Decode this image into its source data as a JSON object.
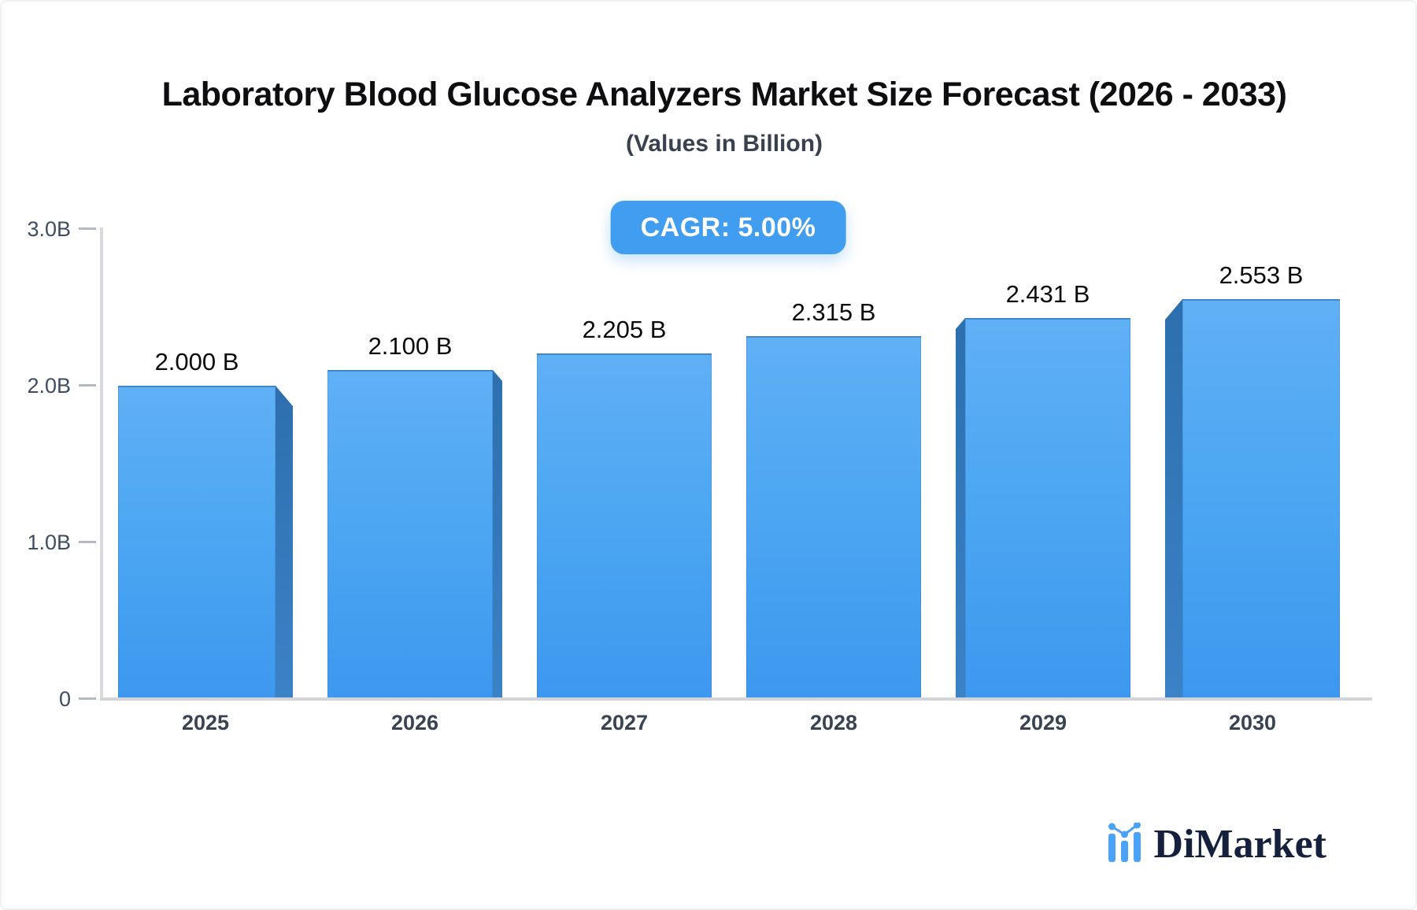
{
  "header": {
    "title": "Laboratory Blood Glucose Analyzers Market Size Forecast (2026 - 2033)",
    "subtitle": "(Values in Billion)",
    "cagr_badge": "CAGR: 5.00%"
  },
  "chart_data": {
    "type": "bar",
    "title": "Laboratory Blood Glucose Analyzers Market Size Forecast (2026 - 2033)",
    "subtitle": "(Values in Billion)",
    "categories": [
      "2025",
      "2026",
      "2027",
      "2028",
      "2029",
      "2030"
    ],
    "values": [
      2.0,
      2.1,
      2.205,
      2.315,
      2.431,
      2.553
    ],
    "bar_labels": [
      "2.000 B",
      "2.100 B",
      "2.205 B",
      "2.315 B",
      "2.431 B",
      "2.553 B"
    ],
    "unit": "B",
    "xlabel": "",
    "ylabel": "",
    "ylim": [
      0,
      3.0
    ],
    "y_ticks": [
      {
        "label": "3.0B",
        "value": 3.0
      },
      {
        "label": "2.0B",
        "value": 2.0
      },
      {
        "label": "1.0B",
        "value": 1.0
      },
      {
        "label": "0",
        "value": 0.0
      }
    ],
    "grid": false,
    "legend": false,
    "annotations": [
      "CAGR: 5.00%"
    ],
    "bar_style": "3d-bevel-center-perspective",
    "colors": {
      "bar_face": "#4da7f2",
      "bar_bevel": "#2f74b4",
      "badge": "#409df0",
      "axis": "#d6d8dd",
      "tick_label": "#3f4d63",
      "category_label": "#394351",
      "value_label": "#0b0b0d"
    }
  },
  "branding": {
    "logo_text": "DiMarket",
    "logo_icon": "mini-bar-line-chart-icon",
    "logo_icon_color": "#4aa3f7",
    "logo_text_color": "#15213c"
  }
}
